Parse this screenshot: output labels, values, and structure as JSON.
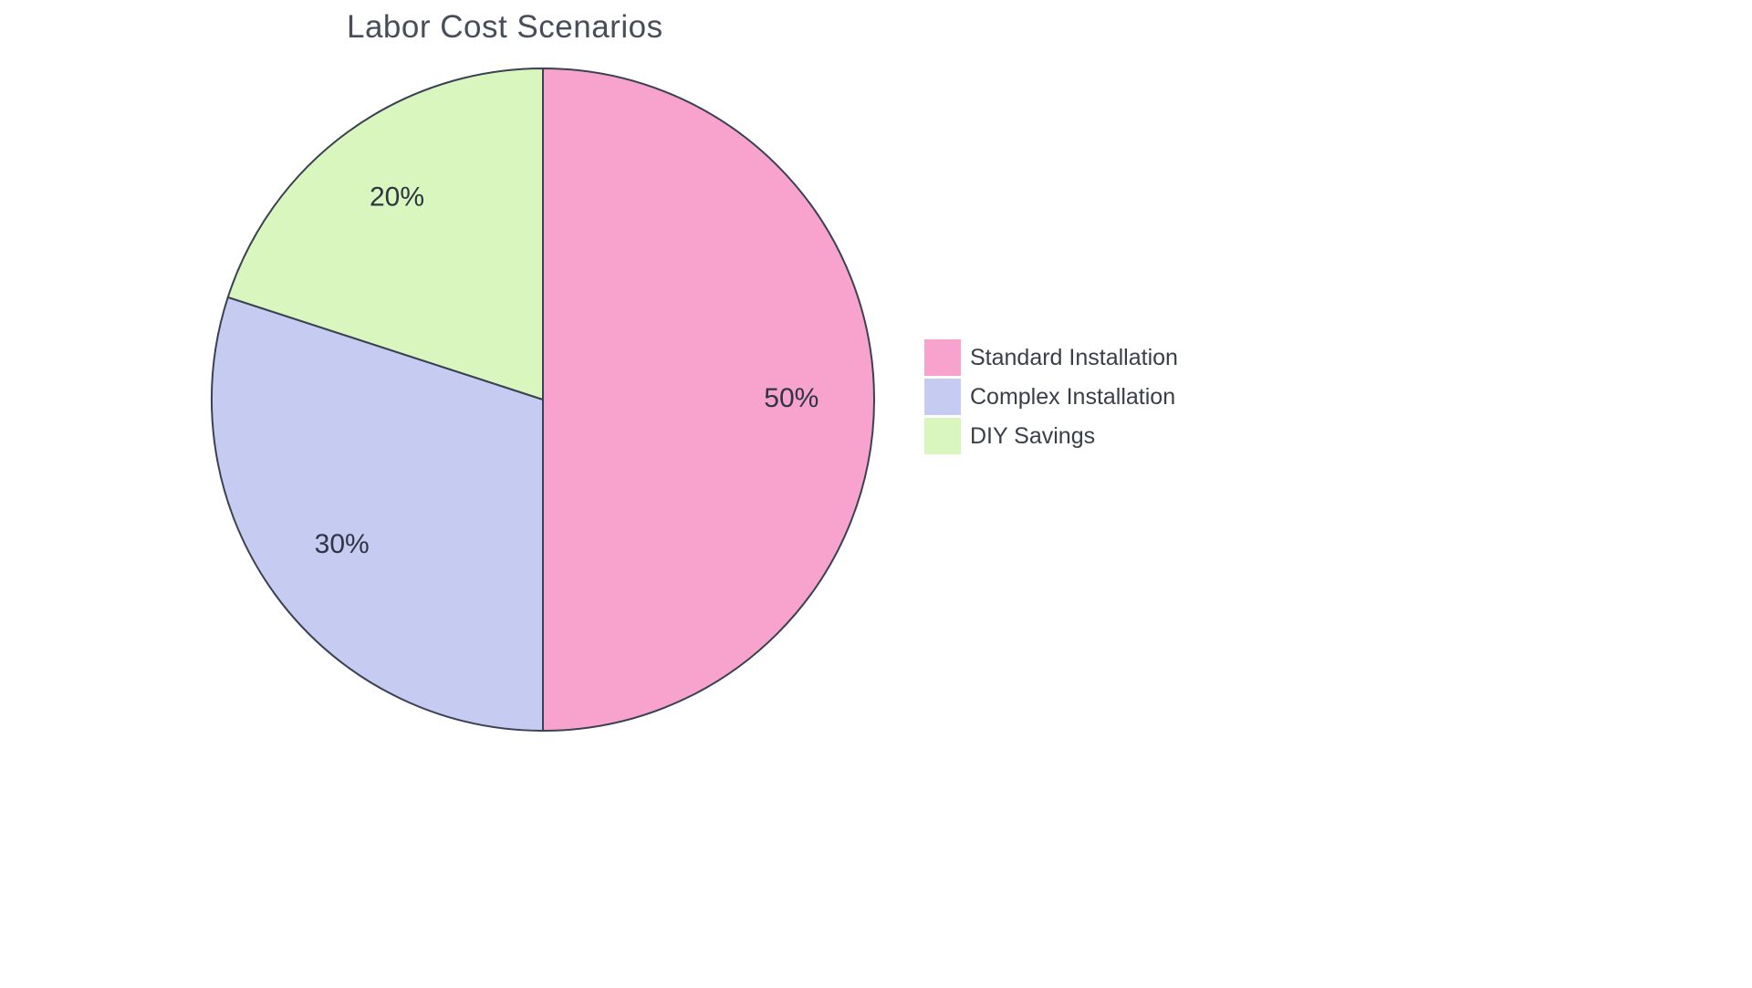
{
  "chart_data": {
    "type": "pie",
    "title": "Labor Cost Scenarios",
    "labels": [
      "Standard Installation",
      "Complex Installation",
      "DIY Savings"
    ],
    "values": [
      50,
      30,
      20
    ],
    "value_labels": [
      "50%",
      "30%",
      "20%"
    ],
    "colors": [
      "#F8A3CD",
      "#C6CBF1",
      "#D9F6BE"
    ],
    "slice_border_color": "#3A4152",
    "slice_border_width": 2,
    "slice_label_color": "#2F3542",
    "title_color": "#474E59",
    "legend_position": "right",
    "start_angle_deg": 0,
    "direction": "clockwise",
    "background": "#FFFFFF"
  }
}
